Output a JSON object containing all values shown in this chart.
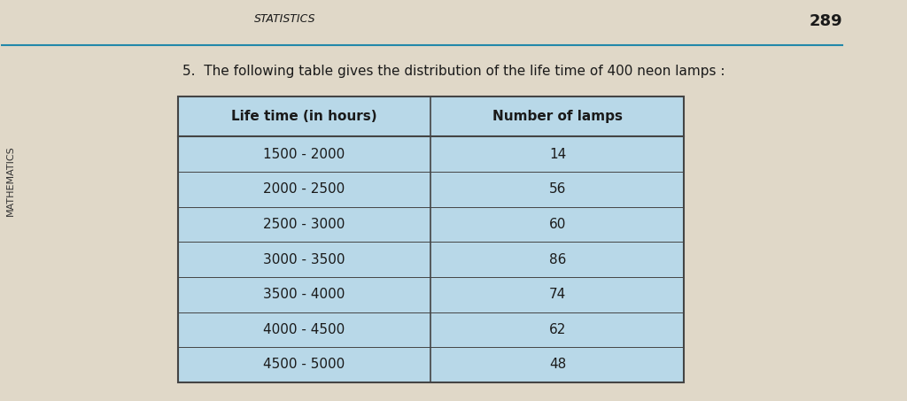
{
  "page_number": "289",
  "header_text": "STATISTICS",
  "side_label": "MATHEMATICS",
  "question_text": "5.  The following table gives the distribution of the life time of 400 neon lamps :",
  "col1_header": "Life time (in hours)",
  "col2_header": "Number of lamps",
  "rows": [
    [
      "1500 - 2000",
      "14"
    ],
    [
      "2000 - 2500",
      "56"
    ],
    [
      "2500 - 3000",
      "60"
    ],
    [
      "3000 - 3500",
      "86"
    ],
    [
      "3500 - 4000",
      "74"
    ],
    [
      "4000 - 4500",
      "62"
    ],
    [
      "4500 - 5000",
      "48"
    ]
  ],
  "table_bg_color": "#b8d8e8",
  "header_bg_color": "#b8d8e8",
  "page_bg_color": "#e0d8c8",
  "text_color": "#1a1a1a",
  "border_color": "#444444",
  "line_color": "#2288aa",
  "header_line_color": "#1a6699"
}
